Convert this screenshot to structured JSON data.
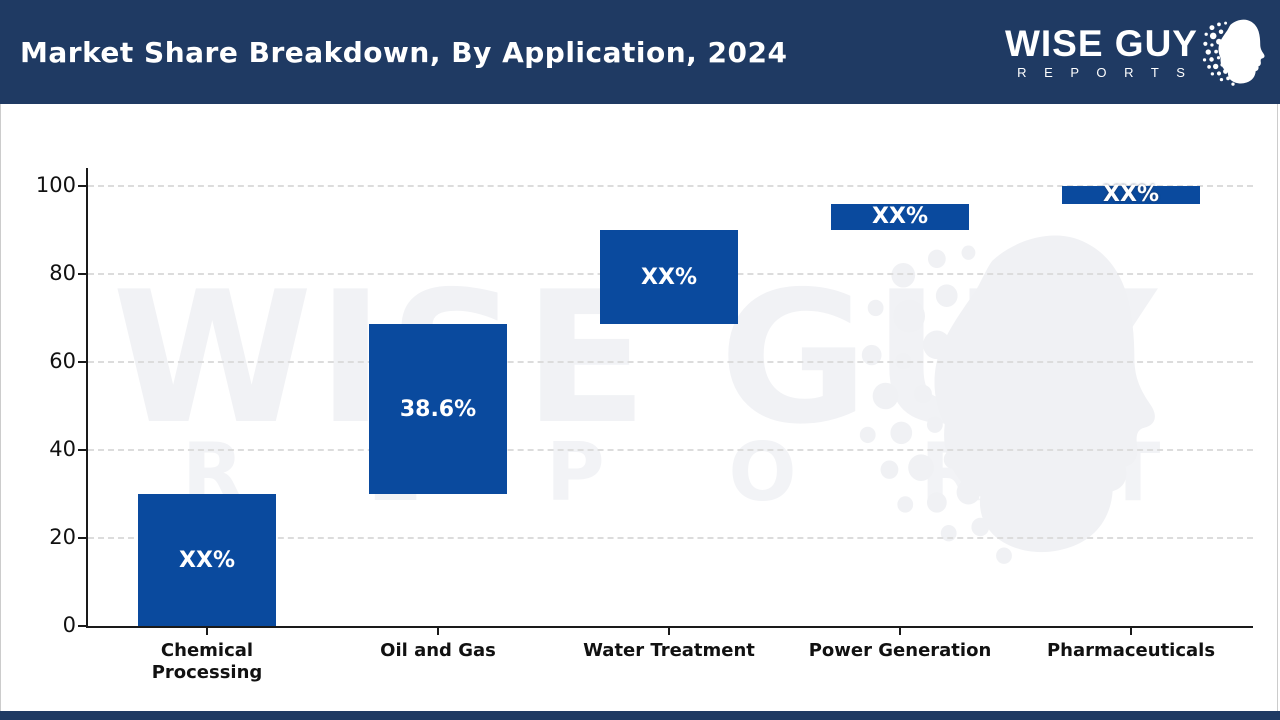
{
  "header": {
    "title": "Market Share Breakdown, By Application, 2024",
    "logo": {
      "brand_line1": "WISE GUY",
      "brand_line2": "R E P O R T S"
    }
  },
  "watermark": {
    "line1": "WISE GUY",
    "line2": "R E P O R T S"
  },
  "chart_data": {
    "type": "bar",
    "variant": "waterfall",
    "title": "Market Share Breakdown, By Application, 2024",
    "categories": [
      "Chemical Processing",
      "Oil and Gas",
      "Water Treatment",
      "Power Generation",
      "Pharmaceuticals"
    ],
    "bars": [
      {
        "category": "Chemical Processing",
        "display": "Chemical\nProcessing",
        "start": 0,
        "end": 30,
        "label": "XX%"
      },
      {
        "category": "Oil and Gas",
        "display": "Oil and Gas",
        "start": 30,
        "end": 68.6,
        "label": "38.6%"
      },
      {
        "category": "Water Treatment",
        "display": "Water Treatment",
        "start": 68.6,
        "end": 90,
        "label": "XX%"
      },
      {
        "category": "Power Generation",
        "display": "Power Generation",
        "start": 90,
        "end": 96,
        "label": "XX%"
      },
      {
        "category": "Pharmaceuticals",
        "display": "Pharmaceuticals",
        "start": 96,
        "end": 100,
        "label": "XX%"
      }
    ],
    "ylim": [
      0,
      100
    ],
    "yticks": [
      0,
      20,
      40,
      60,
      80,
      100
    ],
    "xlabel": "",
    "ylabel": "",
    "grid": "horizontal-dashed",
    "legend": "none",
    "colors": {
      "bar": "#0a4a9e",
      "bar_label": "#ffffff",
      "grid": "#dcdcdc",
      "axis": "#1a1a1a",
      "header_bg": "#1f3a63",
      "watermark": "#f0f1f4"
    }
  }
}
